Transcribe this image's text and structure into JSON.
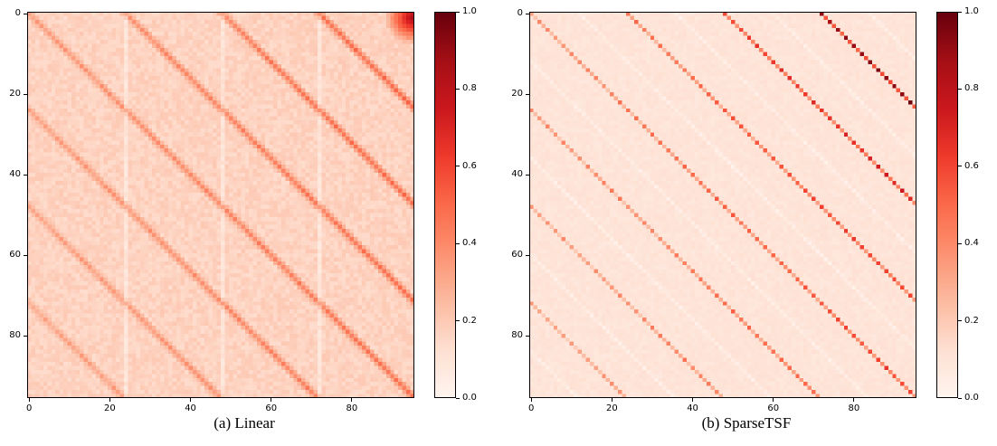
{
  "figure": {
    "background": "#ffffff",
    "captions": {
      "left": "(a) Linear",
      "right": "(b) SparseTSF"
    }
  },
  "colormap": {
    "name": "Reds",
    "anchors": [
      "#fff5f0",
      "#fee0d2",
      "#fcbba1",
      "#fc9272",
      "#fb6a4a",
      "#ef3b2c",
      "#cb181d",
      "#a50f15",
      "#67000d"
    ]
  },
  "chart_data": [
    {
      "type": "heatmap",
      "title": "(a) Linear",
      "description": "96x96 weight matrix heatmap, Reds colormap, values in [0,1]. Light salmon background (~0.15-0.2) with soft diagonal stripes of period 24 (values ~0.3-0.45, darker toward the right), faint lighter vertical bands at columns 24/48/72, and a dark red hotspot (~0.85) in the top-right corner.",
      "grid_size": 96,
      "x_ticks": [
        0,
        20,
        40,
        60,
        80
      ],
      "y_ticks": [
        0,
        20,
        40,
        60,
        80
      ],
      "value_range": [
        0.0,
        1.0
      ],
      "colorbar_ticks": [
        "0.0",
        "0.2",
        "0.4",
        "0.6",
        "0.8",
        "1.0"
      ],
      "pattern": {
        "seed": 42,
        "period": 24,
        "base_value": 0.17,
        "noise": 0.035,
        "diag_value": 0.32,
        "diag_values": {
          "-72": 0.3,
          "-48": 0.31,
          "-24": 0.32,
          "0": 0.33,
          "24": 0.34,
          "48": 0.35,
          "72": 0.36
        },
        "diag_gradient": 0.14,
        "diag_noise": 0.04,
        "soft_edge": 0.45,
        "dotted": false,
        "dot_factor": 1.0,
        "light_col_drop": 0.07,
        "light_diag_offset": null,
        "light_diag_drop": 0.0,
        "hotspot": {
          "row": 1,
          "col": 95,
          "value": 0.85,
          "radius": 7
        }
      }
    },
    {
      "type": "heatmap",
      "title": "(b) SparseTSF",
      "description": "96x96 weight matrix heatmap, Reds colormap, values in [0,1]. Very light background (~0.1) with sharp dotted diagonal stripes of period 24; stripe intensity grows with the diagonal offset toward the top-right, peaking near 1.0 on the +72 diagonal at the right edge; faint whitish diagonal streaks between the red stripes.",
      "grid_size": 96,
      "x_ticks": [
        0,
        20,
        40,
        60,
        80
      ],
      "y_ticks": [
        0,
        20,
        40,
        60,
        80
      ],
      "value_range": [
        0.0,
        1.0
      ],
      "colorbar_ticks": [
        "0.0",
        "0.2",
        "0.4",
        "0.6",
        "0.8",
        "1.0"
      ],
      "pattern": {
        "seed": 7,
        "period": 24,
        "base_value": 0.1,
        "noise": 0.02,
        "diag_value": 0.38,
        "diag_values": {
          "-72": 0.33,
          "-48": 0.34,
          "-24": 0.36,
          "0": 0.38,
          "24": 0.4,
          "48": 0.48,
          "72": 0.7
        },
        "diag_gradient": 0.24,
        "diag_noise": 0.05,
        "soft_edge": 0,
        "dotted": true,
        "dot_factor": 0.62,
        "light_col_drop": 0,
        "light_diag_offset": 12,
        "light_diag_drop": 0.05,
        "hotspot": null
      }
    }
  ]
}
